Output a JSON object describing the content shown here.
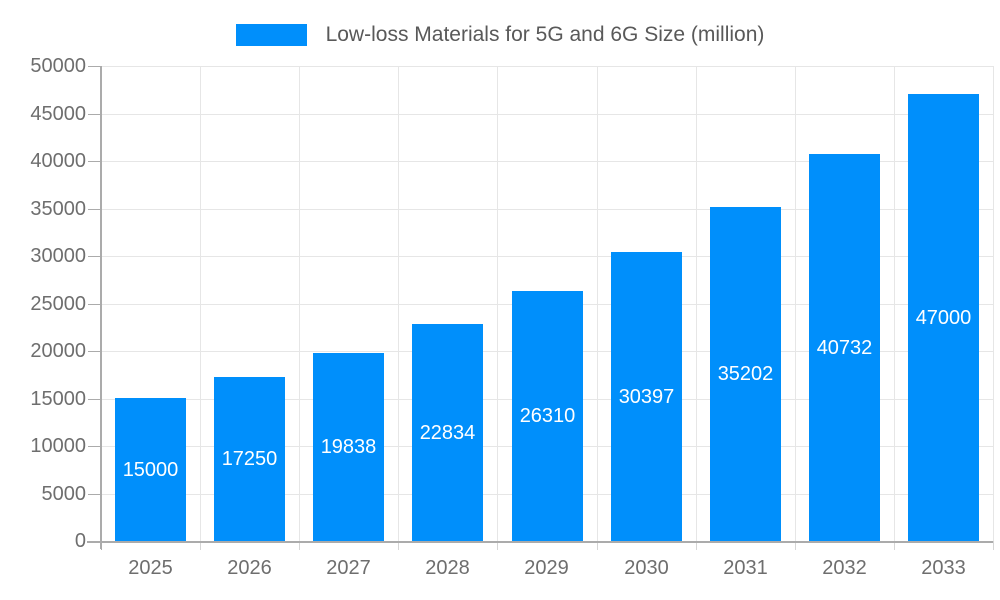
{
  "legend": {
    "label": "Low-loss Materials for 5G and 6G Size (million)",
    "swatch_color": "#008FFB",
    "text_color": "#595959"
  },
  "chart_data": {
    "type": "bar",
    "title": "Low-loss Materials for 5G and 6G Size (million)",
    "categories": [
      "2025",
      "2026",
      "2027",
      "2028",
      "2029",
      "2030",
      "2031",
      "2032",
      "2033"
    ],
    "series": [
      {
        "name": "Low-loss Materials for 5G and 6G Size (million)",
        "values": [
          15000,
          17250,
          19838,
          22834,
          26310,
          30397,
          35202,
          40732,
          47000
        ]
      }
    ],
    "data_labels": [
      "15000",
      "17250",
      "19838",
      "22834",
      "26310",
      "30397",
      "35202",
      "40732",
      "47000"
    ],
    "xlabel": "",
    "ylabel": "",
    "ylim": [
      0,
      50000
    ],
    "ytick_step": 5000,
    "ytick_labels": [
      "0",
      "5000",
      "10000",
      "15000",
      "20000",
      "25000",
      "30000",
      "35000",
      "40000",
      "45000",
      "50000"
    ],
    "grid": true,
    "legend_position": "top",
    "bar_color": "#008FFB",
    "data_label_color": "#ffffff"
  },
  "colors": {
    "bar": "#008FFB",
    "axis_line": "#ababab",
    "grid_line": "#e6e6e6",
    "boundary_tick": "#d6d6d6",
    "tick_label": "#6e6e6e",
    "legend_text": "#595959",
    "background": "#ffffff"
  }
}
